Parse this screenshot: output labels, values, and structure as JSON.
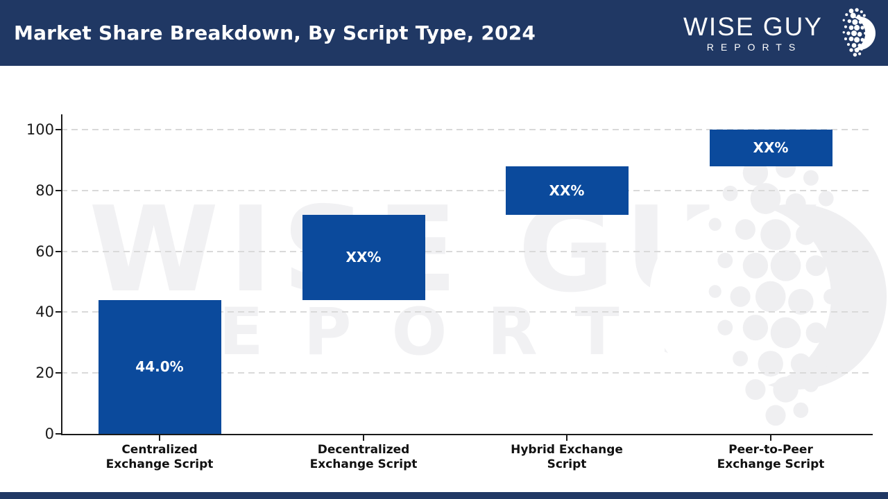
{
  "header": {
    "title": "Market Share Breakdown, By Script Type, 2024",
    "logo": {
      "wordmark": "WISE GUY",
      "reports": "REPORTS"
    }
  },
  "watermark": {
    "line1": "WISE GUY",
    "line2": "REPORTS"
  },
  "chart_data": {
    "type": "bar",
    "variant": "waterfall",
    "title": "Market Share Breakdown, By Script Type, 2024",
    "categories": [
      "Centralized Exchange Script",
      "Decentralized Exchange Script",
      "Hybrid Exchange Script",
      "Peer-to-Peer Exchange Script"
    ],
    "category_lines": [
      [
        "Centralized",
        "Exchange Script"
      ],
      [
        "Decentralized",
        "Exchange Script"
      ],
      [
        "Hybrid Exchange",
        "Script"
      ],
      [
        "Peer-to-Peer",
        "Exchange Script"
      ]
    ],
    "segments": [
      {
        "category": "Centralized Exchange Script",
        "start": 0,
        "end": 44,
        "label": "44.0%"
      },
      {
        "category": "Decentralized Exchange Script",
        "start": 44,
        "end": 72,
        "label": "XX%"
      },
      {
        "category": "Hybrid Exchange Script",
        "start": 72,
        "end": 88,
        "label": "XX%"
      },
      {
        "category": "Peer-to-Peer Exchange Script",
        "start": 88,
        "end": 100,
        "label": "XX%"
      }
    ],
    "yticks": [
      0,
      20,
      40,
      60,
      80,
      100
    ],
    "ylim": [
      0,
      105
    ],
    "xlabel": "",
    "ylabel": "",
    "legend": null,
    "grid": "horizontal-dashed",
    "colors": {
      "bar": "#0b4a9c",
      "bar_label": "#ffffff",
      "header_navy": "#203864",
      "gridline": "#d9d9d9",
      "axis": "#1a1a1a",
      "watermark": "#f1f1f3"
    }
  }
}
